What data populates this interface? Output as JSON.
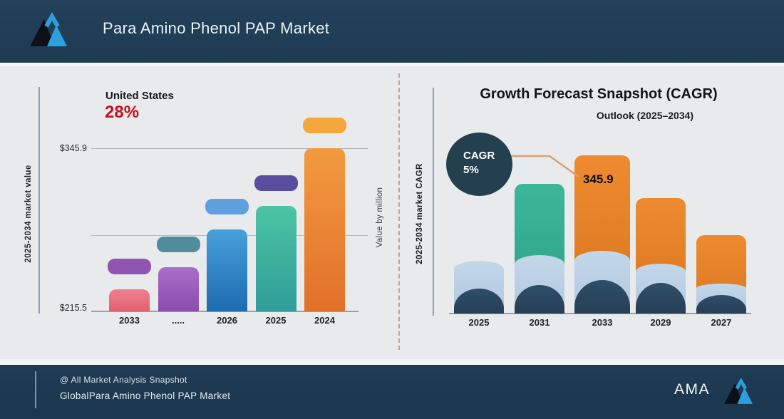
{
  "header": {
    "title": "Para Amino Phenol PAP Market"
  },
  "left_chart": {
    "region_label": "United States",
    "region_share": "28%",
    "y_axis_label": "2025-2034 market value",
    "tick_top": "$345.9",
    "tick_bottom": "$215.5"
  },
  "divider": {
    "value_axis_label": "Value by million"
  },
  "right_chart": {
    "title": "Growth Forecast Snapshot (CAGR)",
    "subtitle": "Outlook (2025–2034)",
    "y_axis_label": "2025-2034 market CAGR",
    "badge_line1": "CAGR",
    "badge_line2": "5%",
    "callout_value": "345.9"
  },
  "footer": {
    "note": "@ All Market Analysis Snapshot",
    "source": "GlobalPara Amino Phenol PAP Market",
    "brand": "AMA"
  },
  "colors": {
    "header_bg": "#203d54",
    "panel_bg": "#e9eaec",
    "accent_red": "#c01320",
    "badge_navy": "#24404f",
    "connector": "#d8a173",
    "axis": "#8ba1b4"
  },
  "chart_data": [
    {
      "type": "bar",
      "title": "United States 2025-2034 market value",
      "categories": [
        "2033",
        ".....",
        "2026",
        "2025",
        "2024"
      ],
      "values": [
        233,
        251,
        281,
        300,
        345.9
      ],
      "ylabel": "2025-2034 market value",
      "ylim": [
        215.5,
        345.9
      ],
      "yticks": [
        "$215.5",
        "$345.9"
      ],
      "grid": true,
      "bar_colors": [
        {
          "top": "#ef8093",
          "bottom": "#e2606f",
          "cap": "#8f55b0"
        },
        {
          "top": "#a76fc9",
          "bottom": "#8c4cab",
          "cap": "#4f8d9e"
        },
        {
          "top": "#47a0d9",
          "bottom": "#1d6bb0",
          "cap": "#5f9fe0"
        },
        {
          "top": "#4cc4a4",
          "bottom": "#2f9d98",
          "cap": "#5a4da0"
        },
        {
          "top": "#f29a40",
          "bottom": "#e2702a",
          "cap": "#f4a73c"
        }
      ]
    },
    {
      "type": "bar",
      "stacked": true,
      "title": "Growth Forecast Snapshot (CAGR)",
      "subtitle": "Outlook (2025–2034)",
      "categories": [
        "2025",
        "2031",
        "2033",
        "2029",
        "2027"
      ],
      "series": [
        {
          "name": "base",
          "color": "#2e4e68",
          "color2": "#273f57",
          "values": [
            54,
            62,
            73,
            67,
            40
          ]
        },
        {
          "name": "mid",
          "color": "#c3d7ea",
          "color2": "#b2c8df",
          "values": [
            62,
            65,
            63.9,
            42,
            25
          ]
        },
        {
          "name": "growth",
          "colors": [
            null,
            "#3cb79a",
            "#ee8a2f",
            "#ee8a2f",
            "#ee8a2f"
          ],
          "colors2": [
            null,
            "#32a88c",
            "#e07c24",
            "#e07c24",
            "#e07c24"
          ],
          "values": [
            0,
            157,
            209,
            143,
            106
          ]
        }
      ],
      "totals": [
        116,
        284,
        345.9,
        252,
        171
      ],
      "annotation": {
        "category": "2033",
        "value": "345.9"
      },
      "badge_label": "CAGR 5%",
      "ylabel": "2025-2034 market CAGR",
      "grid": false,
      "legend": false
    }
  ]
}
